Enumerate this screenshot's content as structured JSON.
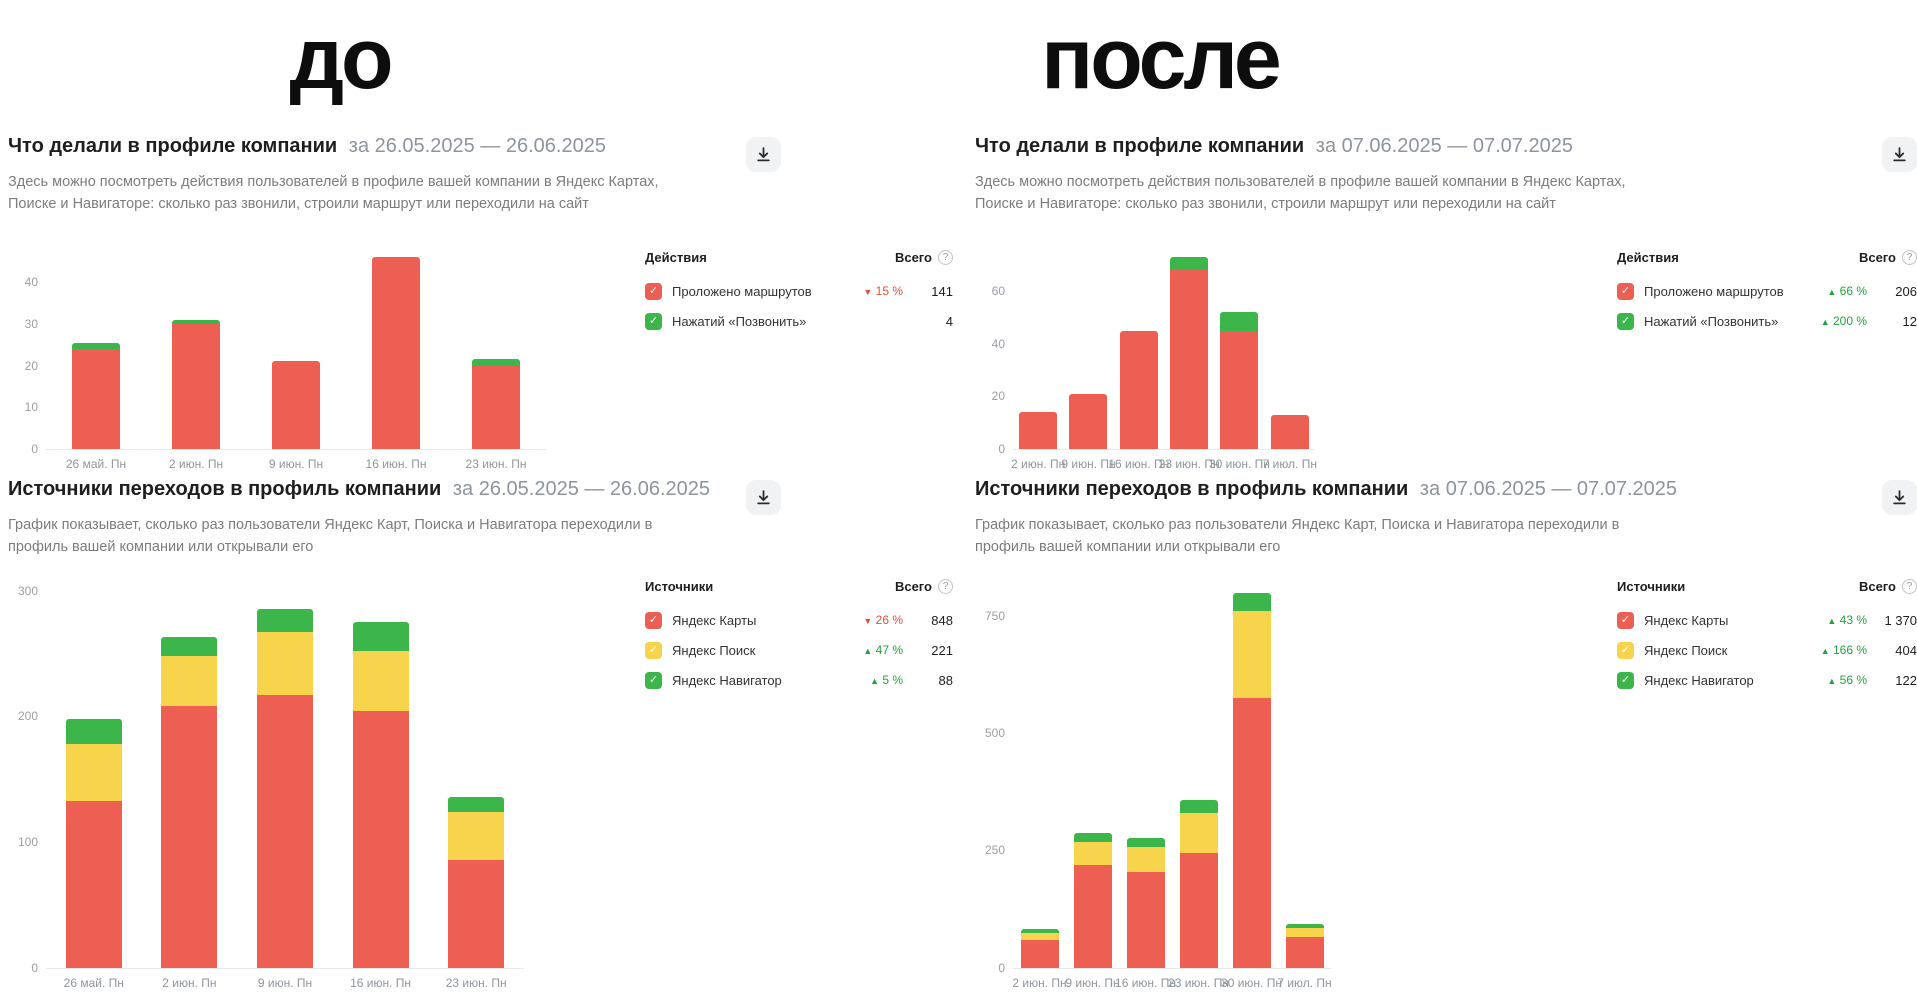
{
  "headers": {
    "before": "до",
    "after": "после"
  },
  "icons": {
    "help_glyph": "?",
    "check_glyph": "✓"
  },
  "colors": {
    "bar_red": "#ed5f52",
    "bar_yellow": "#f7d44c",
    "bar_green": "#3cb54b",
    "delta_up": "#21a43c",
    "delta_down": "#e64d3d"
  },
  "panels": [
    {
      "title": "Что делали в профиле компании",
      "date_range": "за 26.05.2025 — 26.06.2025",
      "description": "Здесь можно посмотреть действия пользователей в профиле вашей компании в Яндекс Картах, Поиске и Навигаторе: сколько раз звонили, строили маршрут или переходили на сайт",
      "legend_header": "Действия",
      "total_header": "Всего",
      "legend": [
        {
          "label": "Проложено маршрутов",
          "color": "#ed5f52",
          "direction": "down",
          "delta": "15 %",
          "total": "141"
        },
        {
          "label": "Нажатий «Позвонить»",
          "color": "#3cb54b",
          "direction": "",
          "delta": "",
          "total": "4"
        }
      ]
    },
    {
      "title": "Что делали в профиле компании",
      "date_range": "за 07.06.2025 — 07.07.2025",
      "description": "Здесь можно посмотреть действия пользователей в профиле вашей компании в Яндекс Картах, Поиске и Навигаторе: сколько раз звонили, строили маршрут или переходили на сайт",
      "legend_header": "Действия",
      "total_header": "Всего",
      "legend": [
        {
          "label": "Проложено маршрутов",
          "color": "#ed5f52",
          "direction": "up",
          "delta": "66 %",
          "total": "206"
        },
        {
          "label": "Нажатий «Позвонить»",
          "color": "#3cb54b",
          "direction": "up",
          "delta": "200 %",
          "total": "12"
        }
      ]
    },
    {
      "title": "Источники переходов в профиль компании",
      "date_range": "за 26.05.2025 — 26.06.2025",
      "description": "График показывает, сколько раз пользователи Яндекс Карт, Поиска и Навигатора переходили в профиль вашей компании или открывали его",
      "legend_header": "Источники",
      "total_header": "Всего",
      "legend": [
        {
          "label": "Яндекс Карты",
          "color": "#ed5f52",
          "direction": "down",
          "delta": "26 %",
          "total": "848"
        },
        {
          "label": "Яндекс Поиск",
          "color": "#f7d44c",
          "direction": "up",
          "delta": "47 %",
          "total": "221"
        },
        {
          "label": "Яндекс Навигатор",
          "color": "#3cb54b",
          "direction": "up",
          "delta": "5 %",
          "total": "88"
        }
      ]
    },
    {
      "title": "Источники переходов в профиль компании",
      "date_range": "за 07.06.2025 — 07.07.2025",
      "description": "График показывает, сколько раз пользователи Яндекс Карт, Поиска и Навигатора переходили в профиль вашей компании или открывали его",
      "legend_header": "Источники",
      "total_header": "Всего",
      "legend": [
        {
          "label": "Яндекс Карты",
          "color": "#ed5f52",
          "direction": "up",
          "delta": "43 %",
          "total": "1 370"
        },
        {
          "label": "Яндекс Поиск",
          "color": "#f7d44c",
          "direction": "up",
          "delta": "166 %",
          "total": "404"
        },
        {
          "label": "Яндекс Навигатор",
          "color": "#3cb54b",
          "direction": "up",
          "delta": "56 %",
          "total": "122"
        }
      ]
    }
  ],
  "chart_data": [
    {
      "type": "bar",
      "stacked": true,
      "title": "Что делали в профиле компании за 26.05.2025 — 26.06.2025",
      "categories": [
        "26 май. Пн",
        "2 июн. Пн",
        "9 июн. Пн",
        "16 июн. Пн",
        "23 июн. Пн"
      ],
      "series": [
        {
          "name": "Проложено маршрутов",
          "color": "#ed5f52",
          "values": [
            24,
            30,
            21,
            46,
            20
          ]
        },
        {
          "name": "Нажатий «Позвонить»",
          "color": "#3cb54b",
          "values": [
            1.5,
            1,
            0,
            0,
            1.5
          ]
        }
      ],
      "yticks": [
        0,
        10,
        20,
        30,
        40
      ],
      "ylim": [
        0,
        48
      ],
      "grid": false,
      "legend_position": "right"
    },
    {
      "type": "bar",
      "stacked": true,
      "title": "Что делали в профиле компании за 07.06.2025 — 07.07.2025",
      "categories": [
        "2 июн. Пн",
        "9 июн. Пн",
        "16 июн. Пн",
        "23 июн. Пн",
        "30 июн. Пн",
        "7 июл. Пн"
      ],
      "series": [
        {
          "name": "Проложено маршрутов",
          "color": "#ed5f52",
          "values": [
            14,
            21,
            45,
            68,
            45,
            13
          ]
        },
        {
          "name": "Нажатий «Позвонить»",
          "color": "#3cb54b",
          "values": [
            0,
            0,
            0,
            5,
            7,
            0
          ]
        }
      ],
      "yticks": [
        0,
        20,
        40,
        60
      ],
      "ylim": [
        0,
        76
      ],
      "grid": false,
      "legend_position": "right"
    },
    {
      "type": "bar",
      "stacked": true,
      "title": "Источники переходов в профиль компании за 26.05.2025 — 26.06.2025",
      "categories": [
        "26 май. Пн",
        "2 июн. Пн",
        "9 июн. Пн",
        "16 июн. Пн",
        "23 июн. Пн"
      ],
      "series": [
        {
          "name": "Яндекс Карты",
          "color": "#ed5f52",
          "values": [
            133,
            208,
            217,
            204,
            86
          ]
        },
        {
          "name": "Яндекс Поиск",
          "color": "#f7d44c",
          "values": [
            45,
            40,
            50,
            48,
            38
          ]
        },
        {
          "name": "Яндекс Навигатор",
          "color": "#3cb54b",
          "values": [
            20,
            15,
            18,
            23,
            12
          ]
        }
      ],
      "yticks": [
        0,
        100,
        200,
        300
      ],
      "ylim": [
        0,
        310
      ],
      "grid": false,
      "legend_position": "right"
    },
    {
      "type": "bar",
      "stacked": true,
      "title": "Источники переходов в профиль компании за 07.06.2025 — 07.07.2025",
      "categories": [
        "2 июн. Пн",
        "9 июн. Пн",
        "16 июн. Пн",
        "23 июн. Пн",
        "30 июн. Пн",
        "7 июл. Пн"
      ],
      "series": [
        {
          "name": "Яндекс Карты",
          "color": "#ed5f52",
          "values": [
            60,
            220,
            205,
            245,
            575,
            65
          ]
        },
        {
          "name": "Яндекс Поиск",
          "color": "#f7d44c",
          "values": [
            14,
            48,
            52,
            85,
            185,
            20
          ]
        },
        {
          "name": "Яндекс Навигатор",
          "color": "#3cb54b",
          "values": [
            8,
            20,
            20,
            28,
            38,
            8
          ]
        }
      ],
      "yticks": [
        0,
        250,
        500,
        750
      ],
      "ylim": [
        0,
        830
      ],
      "grid": false,
      "legend_position": "right"
    }
  ]
}
